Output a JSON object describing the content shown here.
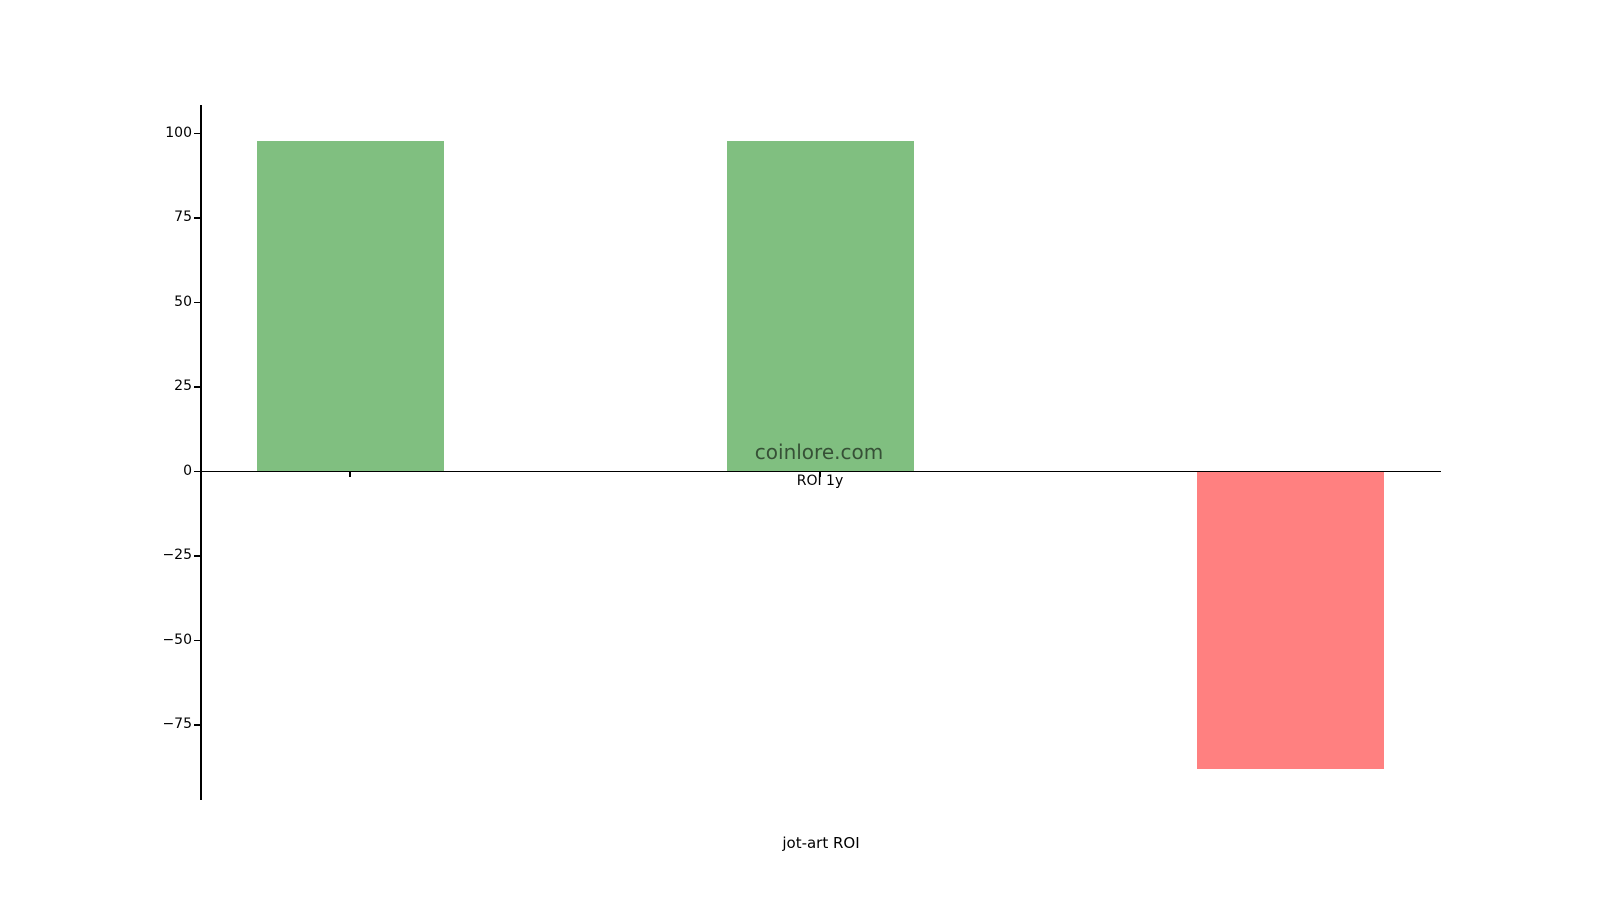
{
  "chart_data": {
    "type": "bar",
    "title": "",
    "footer_label": "jot-art ROI",
    "watermark": "coinlore.com",
    "categories": [
      "",
      "ROI 1y",
      ""
    ],
    "values": [
      97.8,
      97.8,
      -88
    ],
    "series": [
      {
        "name": "jot-art ROI",
        "values": [
          97.8,
          97.8,
          -88
        ]
      }
    ],
    "bar_colors": [
      "#80bf80",
      "#80bf80",
      "#ff8080"
    ],
    "positive_color": "#80bf80",
    "negative_color": "#ff8080",
    "axis_color": "#000000",
    "background_color": "#ffffff",
    "yticks": {
      "values": [
        100,
        75,
        50,
        25,
        0,
        -25,
        -50,
        -75
      ],
      "labels": [
        "100",
        "75",
        "50",
        "25",
        "0",
        "−25",
        "−50",
        "−75"
      ]
    },
    "ylim": [
      -97,
      108
    ],
    "xlabel": "",
    "ylabel": "",
    "grid": false,
    "legend": null
  }
}
